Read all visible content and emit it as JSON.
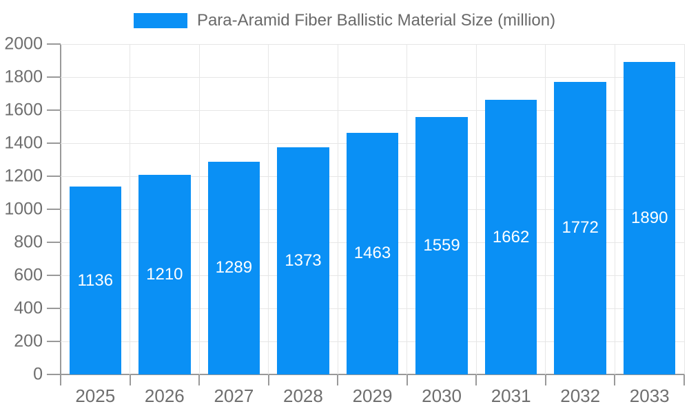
{
  "legend": {
    "label": "Para-Aramid Fiber Ballistic Material Size (million)"
  },
  "colors": {
    "bar": "#0a90f5",
    "grid": "#e6e6e6",
    "axis": "#999999",
    "tick_text": "#6e6e6e",
    "legend_text": "#696969",
    "bar_label_text": "#ffffff",
    "background": "#ffffff"
  },
  "chart_data": {
    "type": "bar",
    "title": "Para-Aramid Fiber Ballistic Material Size (million)",
    "categories": [
      "2025",
      "2026",
      "2027",
      "2028",
      "2029",
      "2030",
      "2031",
      "2032",
      "2033"
    ],
    "values": [
      1136,
      1210,
      1289,
      1373,
      1463,
      1559,
      1662,
      1772,
      1890
    ],
    "xlabel": "",
    "ylabel": "",
    "ylim": [
      0,
      2000
    ],
    "ytick_step": 200,
    "ytick_labels": [
      "0",
      "200",
      "400",
      "600",
      "800",
      "1000",
      "1200",
      "1400",
      "1600",
      "1800",
      "2000"
    ],
    "grid": true,
    "vertical_gridlines": true,
    "legend_position": "top-center",
    "bar_label_position": "inside-center"
  }
}
